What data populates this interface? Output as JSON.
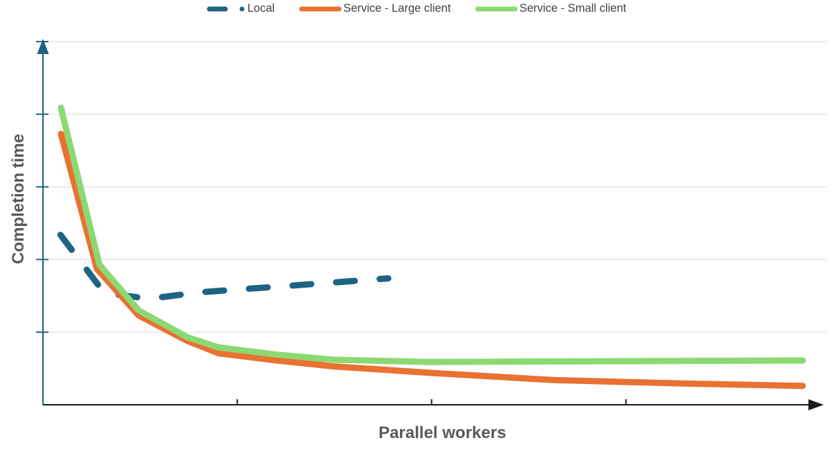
{
  "page": {
    "background": "#FFFFFF"
  },
  "legend": {
    "position": "top-center",
    "text_color": "#404040",
    "items": [
      {
        "label": "Local",
        "marker": "dash-dot-line"
      },
      {
        "label": "Service - Large client",
        "marker": "solid-line"
      },
      {
        "label": "Service - Small client",
        "marker": "solid-line"
      }
    ]
  },
  "axes": {
    "title_color": "#595959",
    "y_axis_color": "#1F6384",
    "x_axis_color": "#1A1A1A",
    "gridline_color": "#E5E5E5",
    "x_tick_labels": [],
    "y_tick_labels": []
  },
  "chart_data": {
    "type": "line",
    "title": "",
    "xlabel": "Parallel workers",
    "ylabel": "Completion time",
    "x_range": [
      0,
      16
    ],
    "x_ticks": [
      4,
      8,
      12
    ],
    "y_range": [
      0,
      5
    ],
    "y_gridlines": [
      1,
      2,
      3,
      4,
      5
    ],
    "axis_labels_note": "both axes are unlabeled relative units; values estimated from gridline positions",
    "grid": "horizontal-only",
    "legend_position": "top-center",
    "series": [
      {
        "name": "Local",
        "color": "#1F6384",
        "line_style": "dashed",
        "points": [
          [
            0.36,
            2.34
          ],
          [
            1.26,
            1.54
          ],
          [
            2.18,
            1.46
          ],
          [
            3.25,
            1.55
          ],
          [
            5.11,
            1.64
          ],
          [
            7.11,
            1.74
          ]
        ]
      },
      {
        "name": "Service - Large client",
        "color": "#E97132",
        "line_style": "solid",
        "points": [
          [
            0.37,
            3.73
          ],
          [
            1.11,
            1.87
          ],
          [
            1.97,
            1.23
          ],
          [
            2.97,
            0.88
          ],
          [
            3.61,
            0.71
          ],
          [
            4.82,
            0.61
          ],
          [
            5.97,
            0.53
          ],
          [
            7.96,
            0.44
          ],
          [
            10.53,
            0.34
          ],
          [
            13.39,
            0.29
          ],
          [
            15.64,
            0.26
          ]
        ]
      },
      {
        "name": "Service - Small client",
        "color": "#8CD873",
        "line_style": "solid",
        "points": [
          [
            0.37,
            4.09
          ],
          [
            1.16,
            1.93
          ],
          [
            1.97,
            1.3
          ],
          [
            2.97,
            0.93
          ],
          [
            3.61,
            0.79
          ],
          [
            4.82,
            0.69
          ],
          [
            5.97,
            0.62
          ],
          [
            7.96,
            0.59
          ],
          [
            11.96,
            0.6
          ],
          [
            15.64,
            0.61
          ]
        ]
      }
    ]
  }
}
